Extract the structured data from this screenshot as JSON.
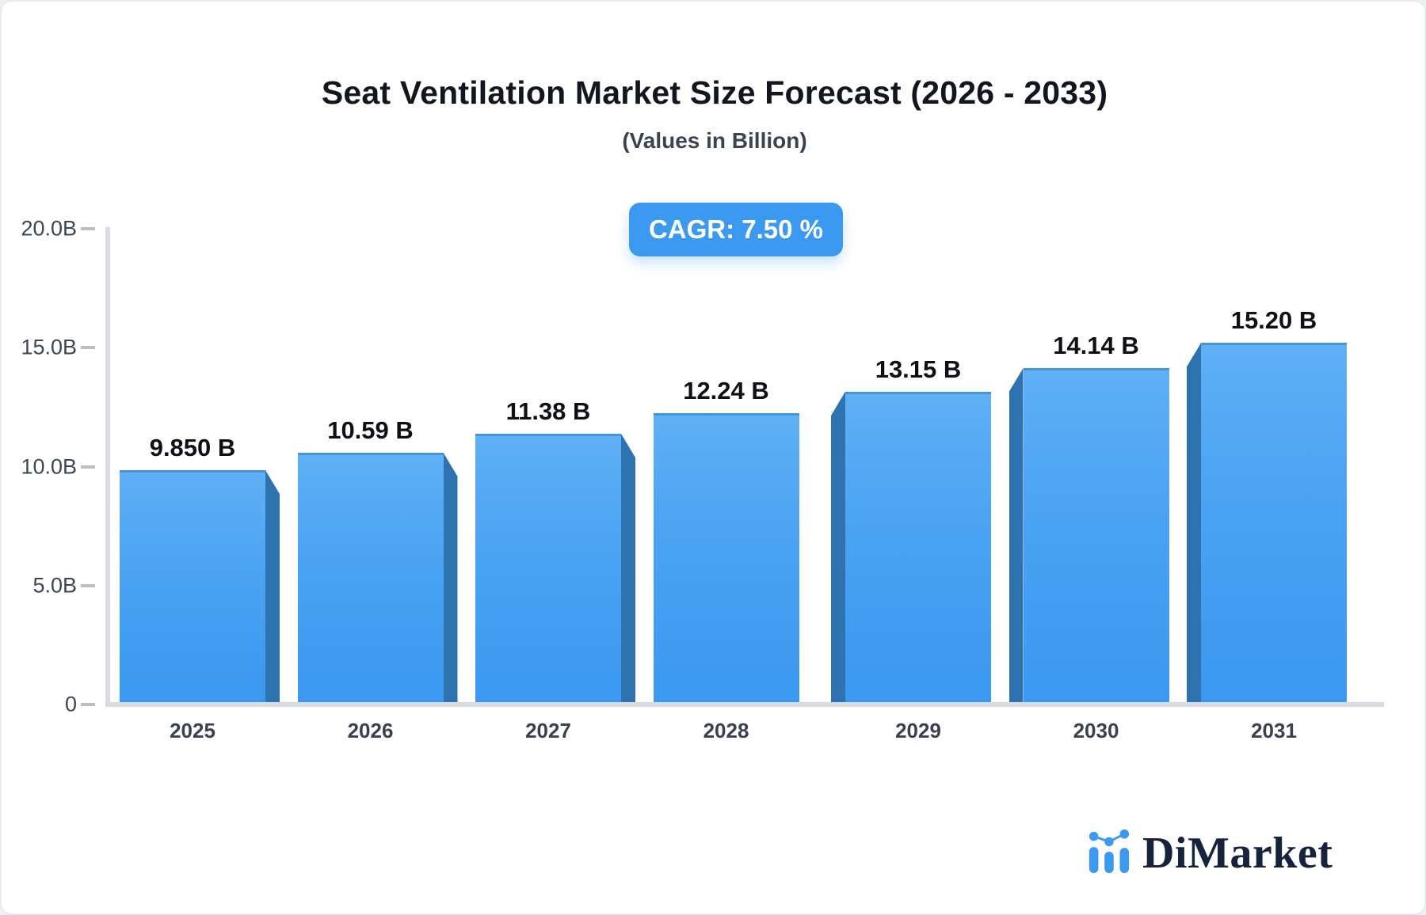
{
  "header": {
    "title": "Seat Ventilation Market Size Forecast (2026 - 2033)",
    "subtitle": "(Values in Billion)",
    "cagr_label": "CAGR: 7.50 %"
  },
  "chart_data": {
    "type": "bar",
    "title": "Seat Ventilation Market Size Forecast (2026 - 2033)",
    "subtitle": "(Values in Billion)",
    "categories": [
      "2025",
      "2026",
      "2027",
      "2028",
      "2029",
      "2030",
      "2031"
    ],
    "values": [
      9.85,
      10.59,
      11.38,
      12.24,
      13.15,
      14.14,
      15.2
    ],
    "value_labels": [
      "9.850 B",
      "10.59 B",
      "11.38 B",
      "12.24 B",
      "13.15 B",
      "14.14 B",
      "15.20 B"
    ],
    "xlabel": "",
    "ylabel": "",
    "ylim": [
      0,
      20
    ],
    "ytick_values": [
      20,
      15,
      10,
      5,
      0
    ],
    "ytick_labels": [
      "20.0B",
      "15.0B",
      "10.0B",
      "5.0B",
      "0"
    ],
    "grid": false,
    "legend": null,
    "annotation": "CAGR: 7.50 %"
  },
  "branding": {
    "logo_text": "DiMarket"
  },
  "colors": {
    "bar_face": "#4aa2f2",
    "bar_side": "#2e73b0",
    "badge_bg": "#3b99f0",
    "axis": "#d8dce1",
    "text_dark": "#11161f",
    "logo_navy": "#16233c",
    "logo_blue": "#3b99f0"
  }
}
